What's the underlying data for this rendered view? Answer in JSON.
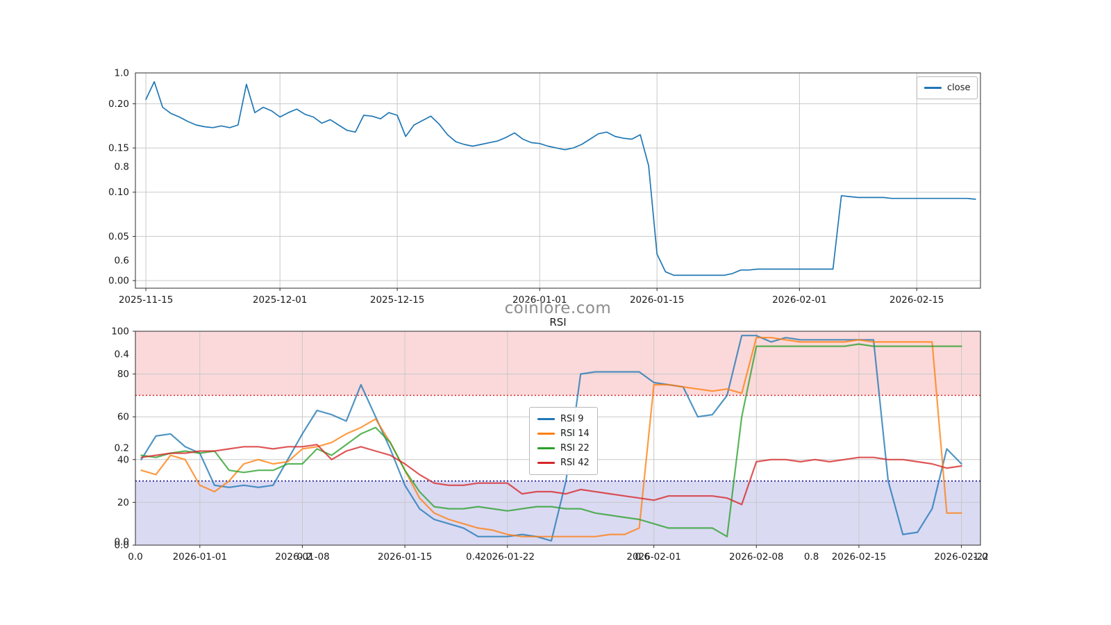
{
  "watermark": "coinlore.com",
  "colors": {
    "accent_blue": "#1f77b4",
    "accent_orange": "#ff7f0e",
    "accent_green": "#2ca02c",
    "accent_red": "#d62728",
    "grid": "#c8c8c8",
    "spine": "#2b2b2b",
    "overbought_band": "#fbd9da",
    "oversold_band": "#dbdaf3",
    "overbought_line": "#d62728",
    "oversold_line": "#00008b"
  },
  "chart_data": [
    {
      "type": "line",
      "name": "price-close",
      "title": "",
      "x_start_date": "2025-11-15",
      "x_unit": "days",
      "xlim": [
        -1.25,
        99.6
      ],
      "ylim": [
        -0.0086,
        0.2349
      ],
      "grid": true,
      "legend_position": "upper right",
      "xticks": [
        {
          "label": "2025-11-15",
          "v": 0
        },
        {
          "label": "2025-12-01",
          "v": 16
        },
        {
          "label": "2025-12-15",
          "v": 30
        },
        {
          "label": "2026-01-01",
          "v": 47
        },
        {
          "label": "2026-01-15",
          "v": 61
        },
        {
          "label": "2026-02-01",
          "v": 78
        },
        {
          "label": "2026-02-15",
          "v": 92
        }
      ],
      "yticks": [
        {
          "label": "0.00",
          "v": 0.0
        },
        {
          "label": "0.05",
          "v": 0.05
        },
        {
          "label": "0.10",
          "v": 0.1
        },
        {
          "label": "0.15",
          "v": 0.15
        },
        {
          "label": "0.20",
          "v": 0.2
        }
      ],
      "series": [
        {
          "name": "close",
          "color": "#1f77b4",
          "values": [
            0.205,
            0.225,
            0.196,
            0.189,
            0.185,
            0.18,
            0.176,
            0.174,
            0.173,
            0.175,
            0.173,
            0.176,
            0.222,
            0.19,
            0.196,
            0.192,
            0.185,
            0.19,
            0.194,
            0.188,
            0.185,
            0.178,
            0.182,
            0.176,
            0.17,
            0.168,
            0.187,
            0.186,
            0.183,
            0.19,
            0.187,
            0.163,
            0.176,
            0.181,
            0.186,
            0.177,
            0.165,
            0.157,
            0.154,
            0.152,
            0.154,
            0.156,
            0.158,
            0.162,
            0.167,
            0.16,
            0.156,
            0.155,
            0.152,
            0.15,
            0.148,
            0.15,
            0.154,
            0.16,
            0.166,
            0.168,
            0.163,
            0.161,
            0.16,
            0.165,
            0.13,
            0.03,
            0.01,
            0.006,
            0.006,
            0.006,
            0.006,
            0.006,
            0.006,
            0.006,
            0.008,
            0.012,
            0.012,
            0.013,
            0.013,
            0.013,
            0.013,
            0.013,
            0.013,
            0.013,
            0.013,
            0.013,
            0.013,
            0.096,
            0.095,
            0.094,
            0.094,
            0.094,
            0.094,
            0.093,
            0.093,
            0.093,
            0.093,
            0.093,
            0.093,
            0.093,
            0.093,
            0.093,
            0.093,
            0.092
          ]
        }
      ]
    },
    {
      "type": "line",
      "name": "rsi",
      "title": "RSI",
      "x_start_date": "2025-12-28",
      "x_unit": "days",
      "xlim": [
        -0.4,
        57.3
      ],
      "ylim": [
        0,
        100
      ],
      "grid": true,
      "legend_position": "center left",
      "xticks": [
        {
          "label": "2026-01-01",
          "v": 4
        },
        {
          "label": "2026-01-08",
          "v": 11
        },
        {
          "label": "2026-01-15",
          "v": 18
        },
        {
          "label": "2026-01-22",
          "v": 25
        },
        {
          "label": "2026-02-01",
          "v": 35
        },
        {
          "label": "2026-02-08",
          "v": 42
        },
        {
          "label": "2026-02-15",
          "v": 49
        },
        {
          "label": "2026-02-22",
          "v": 56
        }
      ],
      "yticks": [
        {
          "label": "0.0",
          "v": 0
        },
        {
          "label": "20",
          "v": 20
        },
        {
          "label": "40",
          "v": 40
        },
        {
          "label": "60",
          "v": 60
        },
        {
          "label": "80",
          "v": 80
        },
        {
          "label": "100",
          "v": 100
        }
      ],
      "bands": [
        {
          "from": 70,
          "to": 100,
          "fill": "#fbd9da",
          "meaning": "overbought"
        },
        {
          "from": 0,
          "to": 30,
          "fill": "#dbdaf3",
          "meaning": "oversold"
        }
      ],
      "hlines": [
        {
          "v": 70,
          "color": "#d62728",
          "style": "dotted"
        },
        {
          "v": 30,
          "color": "#00008b",
          "style": "dotted"
        }
      ],
      "series": [
        {
          "name": "RSI 9",
          "color": "#1f77b4",
          "values": [
            40,
            51,
            52,
            46,
            43,
            28,
            27,
            28,
            27,
            28,
            40,
            52,
            63,
            61,
            58,
            75,
            60,
            45,
            28,
            17,
            12,
            10,
            8,
            4,
            4,
            4,
            5,
            4,
            2,
            30,
            80,
            81,
            81,
            81,
            81,
            76,
            75,
            74,
            60,
            61,
            70,
            98,
            98,
            95,
            97,
            96,
            96,
            96,
            96,
            96,
            96,
            30,
            5,
            6,
            17,
            45,
            38
          ]
        },
        {
          "name": "RSI 14",
          "color": "#ff7f0e",
          "values": [
            35,
            33,
            42,
            40,
            28,
            25,
            30,
            38,
            40,
            38,
            39,
            45,
            46,
            48,
            52,
            55,
            59,
            48,
            35,
            22,
            15,
            12,
            10,
            8,
            7,
            5,
            4,
            4,
            4,
            4,
            4,
            4,
            5,
            5,
            8,
            75,
            75,
            74,
            73,
            72,
            73,
            71,
            97,
            97,
            96,
            95,
            95,
            95,
            95,
            96,
            95,
            95,
            95,
            95,
            95,
            15,
            15
          ]
        },
        {
          "name": "RSI 22",
          "color": "#2ca02c",
          "values": [
            42,
            41,
            43,
            44,
            43,
            44,
            35,
            34,
            35,
            35,
            38,
            38,
            45,
            42,
            47,
            52,
            55,
            48,
            35,
            25,
            18,
            17,
            17,
            18,
            17,
            16,
            17,
            18,
            18,
            17,
            17,
            15,
            14,
            13,
            12,
            10,
            8,
            8,
            8,
            8,
            4,
            60,
            93,
            93,
            93,
            93,
            93,
            93,
            93,
            94,
            93,
            93,
            93,
            93,
            93,
            93,
            93
          ]
        },
        {
          "name": "RSI 42",
          "color": "#d62728",
          "values": [
            41,
            42,
            43,
            43,
            44,
            44,
            45,
            46,
            46,
            45,
            46,
            46,
            47,
            40,
            44,
            46,
            44,
            42,
            38,
            33,
            29,
            28,
            28,
            29,
            29,
            29,
            24,
            25,
            25,
            24,
            26,
            25,
            24,
            23,
            22,
            21,
            23,
            23,
            23,
            23,
            22,
            19,
            39,
            40,
            40,
            39,
            40,
            39,
            40,
            41,
            41,
            40,
            40,
            39,
            38,
            36,
            37
          ]
        }
      ]
    }
  ],
  "overlay_axis": {
    "xticks": [
      {
        "label": "0.0",
        "f": 0.0
      },
      {
        "label": "0.2",
        "f": 0.2
      },
      {
        "label": "0.4",
        "f": 0.4
      },
      {
        "label": "0.6",
        "f": 0.6
      },
      {
        "label": "0.8",
        "f": 0.8
      },
      {
        "label": "1.0",
        "f": 1.0
      }
    ],
    "yticks": [
      {
        "label": "1.0",
        "f": 1.0
      },
      {
        "label": "0.8",
        "f": 0.8
      },
      {
        "label": "0.6",
        "f": 0.6
      },
      {
        "label": "0.4",
        "f": 0.4
      },
      {
        "label": "0.2",
        "f": 0.2
      },
      {
        "label": "0.0",
        "f": 0.0
      }
    ]
  }
}
